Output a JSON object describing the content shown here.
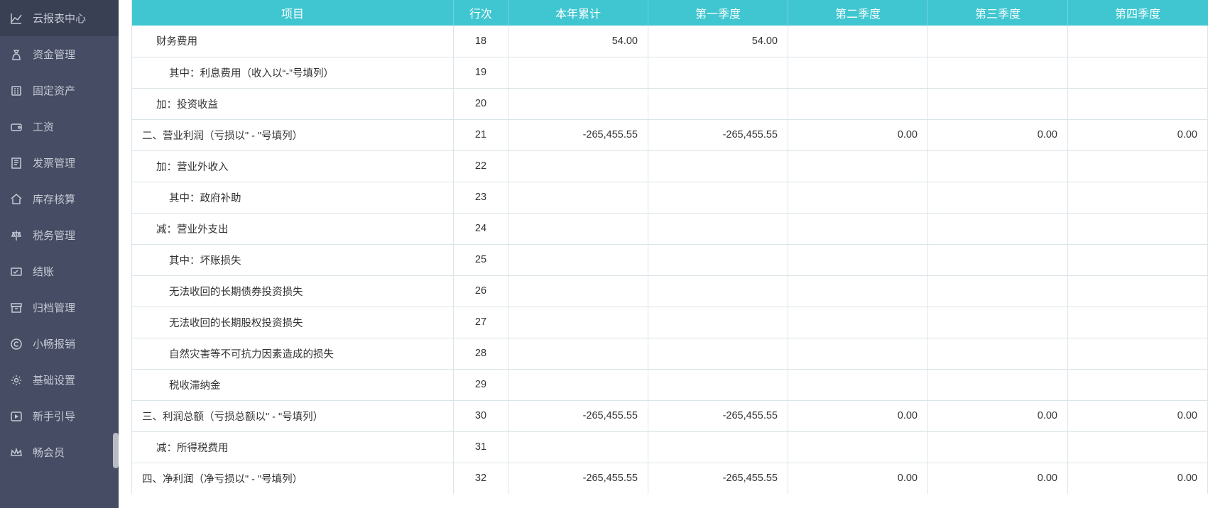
{
  "colors": {
    "sidebar_bg": "#454c63",
    "sidebar_text": "#c6c9d4",
    "header_bg": "#3fc6d0",
    "header_text": "#ffffff",
    "border": "#dbe4e8",
    "negative": "#e34242",
    "text": "#333333"
  },
  "sidebar": {
    "items": [
      {
        "id": "cloud-report",
        "icon": "chart-line-icon",
        "label": "云报表中心"
      },
      {
        "id": "fund-manage",
        "icon": "money-bag-icon",
        "label": "资金管理"
      },
      {
        "id": "fixed-assets",
        "icon": "building-icon",
        "label": "固定资产"
      },
      {
        "id": "salary",
        "icon": "wallet-icon",
        "label": "工资"
      },
      {
        "id": "invoice",
        "icon": "receipt-icon",
        "label": "发票管理"
      },
      {
        "id": "inventory",
        "icon": "house-icon",
        "label": "库存核算"
      },
      {
        "id": "tax",
        "icon": "scale-icon",
        "label": "税务管理"
      },
      {
        "id": "close-books",
        "icon": "checkbook-icon",
        "label": "结账"
      },
      {
        "id": "archive",
        "icon": "archive-icon",
        "label": "归档管理"
      },
      {
        "id": "reseller",
        "icon": "badge-c-icon",
        "label": "小畅报销"
      },
      {
        "id": "settings",
        "icon": "gear-icon",
        "label": "基础设置"
      },
      {
        "id": "guide",
        "icon": "play-icon",
        "label": "新手引导"
      },
      {
        "id": "vip",
        "icon": "crown-icon",
        "label": "畅会员"
      }
    ]
  },
  "table": {
    "columns": [
      {
        "key": "item",
        "label": "项目",
        "class": "col-item"
      },
      {
        "key": "line",
        "label": "行次",
        "class": "col-line"
      },
      {
        "key": "ytd",
        "label": "本年累计",
        "class": "col-num"
      },
      {
        "key": "q1",
        "label": "第一季度",
        "class": "col-num"
      },
      {
        "key": "q2",
        "label": "第二季度",
        "class": "col-num"
      },
      {
        "key": "q3",
        "label": "第三季度",
        "class": "col-num"
      },
      {
        "key": "q4",
        "label": "第四季度",
        "class": "col-num"
      }
    ],
    "rows": [
      {
        "indent": 1,
        "item": "财务费用",
        "line": "18",
        "ytd": "54.00",
        "q1": "54.00",
        "q2": "",
        "q3": "",
        "q4": ""
      },
      {
        "indent": 2,
        "item": "其中：利息费用（收入以“-”号填列）",
        "line": "19",
        "ytd": "",
        "q1": "",
        "q2": "",
        "q3": "",
        "q4": ""
      },
      {
        "indent": 1,
        "item": "加：投资收益",
        "line": "20",
        "ytd": "",
        "q1": "",
        "q2": "",
        "q3": "",
        "q4": ""
      },
      {
        "indent": 0,
        "item": "二、营业利润（亏损以\" - \"号填列）",
        "line": "21",
        "ytd": "-265,455.55",
        "q1": "-265,455.55",
        "q2": "0.00",
        "q3": "0.00",
        "q4": "0.00"
      },
      {
        "indent": 1,
        "item": "加：营业外收入",
        "line": "22",
        "ytd": "",
        "q1": "",
        "q2": "",
        "q3": "",
        "q4": ""
      },
      {
        "indent": 2,
        "item": "其中：政府补助",
        "line": "23",
        "ytd": "",
        "q1": "",
        "q2": "",
        "q3": "",
        "q4": ""
      },
      {
        "indent": 1,
        "item": "减：营业外支出",
        "line": "24",
        "ytd": "",
        "q1": "",
        "q2": "",
        "q3": "",
        "q4": ""
      },
      {
        "indent": 2,
        "item": "其中：坏账损失",
        "line": "25",
        "ytd": "",
        "q1": "",
        "q2": "",
        "q3": "",
        "q4": ""
      },
      {
        "indent": 2,
        "item": "无法收回的长期债券投资损失",
        "line": "26",
        "ytd": "",
        "q1": "",
        "q2": "",
        "q3": "",
        "q4": ""
      },
      {
        "indent": 2,
        "item": "无法收回的长期股权投资损失",
        "line": "27",
        "ytd": "",
        "q1": "",
        "q2": "",
        "q3": "",
        "q4": ""
      },
      {
        "indent": 2,
        "item": "自然灾害等不可抗力因素造成的损失",
        "line": "28",
        "ytd": "",
        "q1": "",
        "q2": "",
        "q3": "",
        "q4": ""
      },
      {
        "indent": 2,
        "item": "税收滞纳金",
        "line": "29",
        "ytd": "",
        "q1": "",
        "q2": "",
        "q3": "",
        "q4": ""
      },
      {
        "indent": 0,
        "item": "三、利润总额（亏损总额以\" - \"号填列）",
        "line": "30",
        "ytd": "-265,455.55",
        "q1": "-265,455.55",
        "q2": "0.00",
        "q3": "0.00",
        "q4": "0.00"
      },
      {
        "indent": 1,
        "item": "减：所得税费用",
        "line": "31",
        "ytd": "",
        "q1": "",
        "q2": "",
        "q3": "",
        "q4": ""
      },
      {
        "indent": 0,
        "item": "四、净利润（净亏损以\" - \"号填列）",
        "line": "32",
        "ytd": "-265,455.55",
        "q1": "-265,455.55",
        "q2": "0.00",
        "q3": "0.00",
        "q4": "0.00"
      }
    ]
  }
}
